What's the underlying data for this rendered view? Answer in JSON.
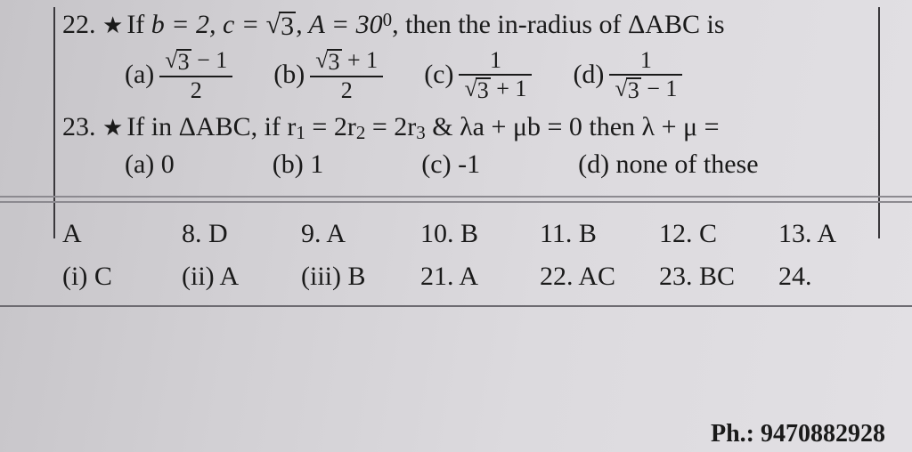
{
  "q22": {
    "num": "22.",
    "star": "★",
    "stem_pre": "If ",
    "b": "b = 2, c =",
    "c_root": "3",
    "A": ", A = 30",
    "deg": "0",
    "after": ", then the in-radius of ΔABC is",
    "opts": {
      "a_label": "(a)",
      "a_num_root": "3",
      "a_num_tail": " − 1",
      "a_den": "2",
      "b_label": "(b)",
      "b_num_root": "3",
      "b_num_tail": " + 1",
      "b_den": "2",
      "c_label": "(c)",
      "c_num": "1",
      "c_den_root": "3",
      "c_den_tail": " + 1",
      "d_label": "(d)",
      "d_num": "1",
      "d_den_root": "3",
      "d_den_tail": " − 1"
    }
  },
  "q23": {
    "num": "23.",
    "star": "★",
    "stem": "If in ΔABC, if r",
    "s1": "1",
    "eq1": " = 2r",
    "s2": "2",
    "eq2": " = 2r",
    "s3": "3",
    "tail": " & λa + μb = 0 then λ + μ =",
    "opts": {
      "a": "(a) 0",
      "b": "(b) 1",
      "c": "(c) -1",
      "d": "(d) none of these"
    }
  },
  "answers": {
    "row1": [
      "A",
      "8.  D",
      "9.  A",
      "10. B",
      "11. B",
      "12. C",
      "13. A"
    ],
    "row2": [
      "(i) C",
      "(ii) A",
      "(iii) B",
      "21. A",
      "22. AC",
      "23. BC",
      "24."
    ]
  },
  "phone_prefix": "Ph.:",
  "phone": "9470882928",
  "colors": {
    "text": "#1a1a1a",
    "bg_from": "#c6c4c8",
    "bg_to": "#e2e0e4",
    "sep": "#8c8a90"
  }
}
